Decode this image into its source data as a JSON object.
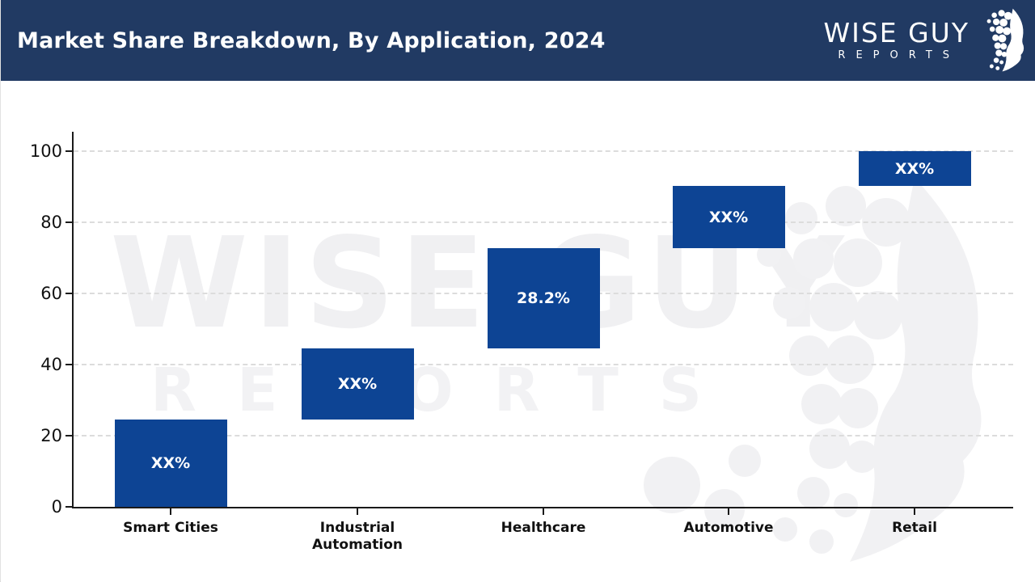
{
  "header": {
    "title": "Market Share Breakdown, By Application, 2024",
    "logo": {
      "line1": "WISE GUY",
      "line2": "REPORTS"
    }
  },
  "watermark": {
    "line1": "WISE GUY",
    "line2": "REPORTS"
  },
  "chart_data": {
    "type": "bar",
    "subtype": "floating-waterfall",
    "title": "Market Share Breakdown, By Application, 2024",
    "categories": [
      "Smart Cities",
      "Industrial Automation",
      "Healthcare",
      "Automotive",
      "Retail"
    ],
    "segments": [
      {
        "category": "Smart Cities",
        "start": 0,
        "end": 24.5,
        "label": "XX%"
      },
      {
        "category": "Industrial Automation",
        "start": 24.5,
        "end": 44.5,
        "label": "XX%"
      },
      {
        "category": "Healthcare",
        "start": 44.5,
        "end": 72.7,
        "label": "28.2%"
      },
      {
        "category": "Automotive",
        "start": 72.7,
        "end": 90.2,
        "label": "XX%"
      },
      {
        "category": "Retail",
        "start": 90.2,
        "end": 100,
        "label": "XX%"
      }
    ],
    "ylim": [
      0,
      100
    ],
    "yticks": [
      0,
      20,
      40,
      60,
      80,
      100
    ],
    "grid": "horizontal-dashed",
    "legend": "none",
    "bar_color": "#0d4494",
    "bar_label_color": "#ffffff"
  },
  "colors": {
    "header_bg": "#213a63",
    "bar": "#0d4494",
    "grid": "#dcdcdc",
    "axis": "#1a1a1a",
    "watermark": "#f0f0f2"
  }
}
